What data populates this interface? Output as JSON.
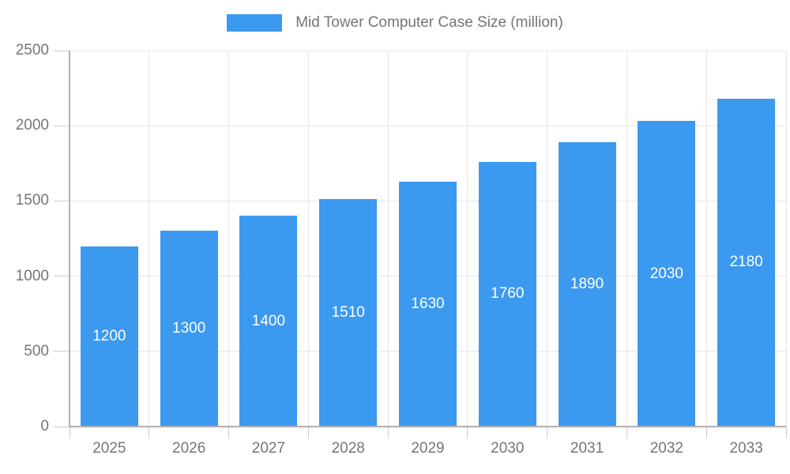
{
  "chart_data": {
    "type": "bar",
    "title": "Mid Tower Computer Case Size (million)",
    "categories": [
      "2025",
      "2026",
      "2027",
      "2028",
      "2029",
      "2030",
      "2031",
      "2032",
      "2033"
    ],
    "values": [
      1200,
      1300,
      1400,
      1510,
      1630,
      1760,
      1890,
      2030,
      2180
    ],
    "xlabel": "",
    "ylabel": "",
    "ylim": [
      0,
      2500
    ],
    "yticks": [
      0,
      500,
      1000,
      1500,
      2000,
      2500
    ],
    "grid": true,
    "legend_position": "top",
    "bar_labels_inside": true,
    "colors": {
      "bar": "#3B99F0",
      "bar_label": "#FFFFFF",
      "axis_text": "#757575",
      "grid_line": "#E6E6E6",
      "axis_line": "#B0B0B0",
      "tick_line": "#CCCCCC",
      "background": "#FFFFFF"
    }
  }
}
